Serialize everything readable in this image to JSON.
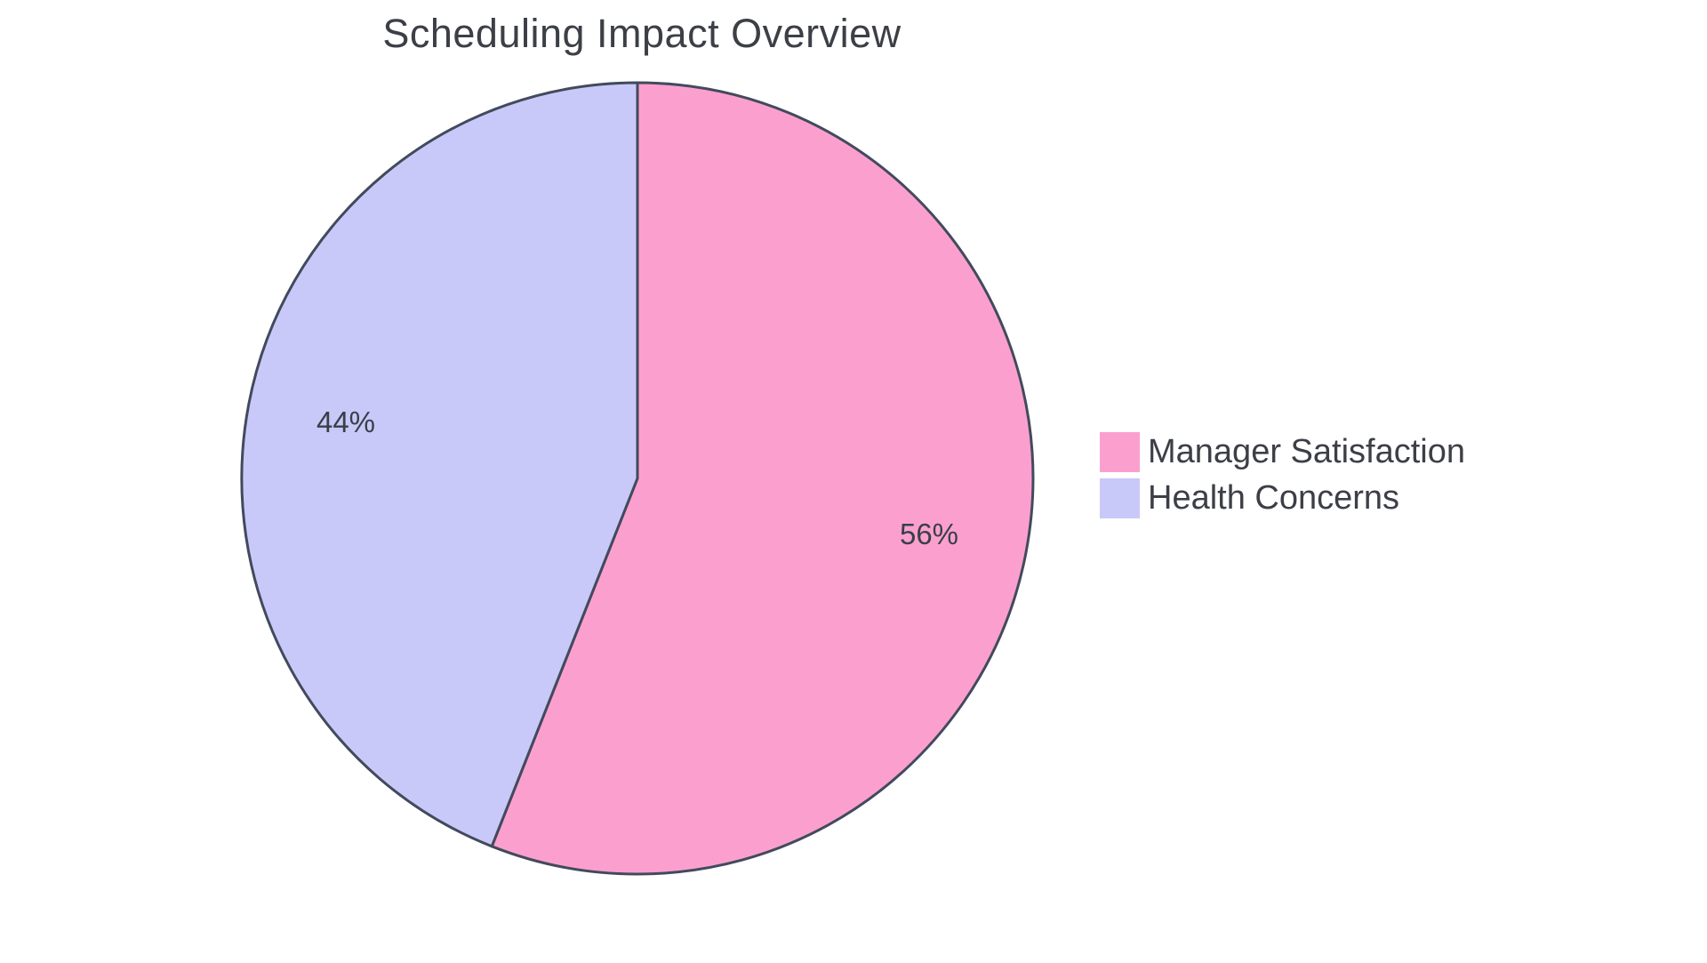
{
  "chart_data": {
    "type": "pie",
    "title": "Scheduling Impact Overview",
    "slices": [
      {
        "label": "Manager Satisfaction",
        "value": 56,
        "pct_label": "56%",
        "color": "#FBA0CE"
      },
      {
        "label": "Health Concerns",
        "value": 44,
        "pct_label": "44%",
        "color": "#C9C9F9"
      }
    ],
    "start_angle_deg": 0,
    "direction": "clockwise",
    "slice_border_color": "#424A5C",
    "slice_border_width": 3,
    "label_text_color": "#3A3F48",
    "title_text_color": "#3C3F46",
    "legend_position": "right",
    "background": "#FFFFFF"
  }
}
